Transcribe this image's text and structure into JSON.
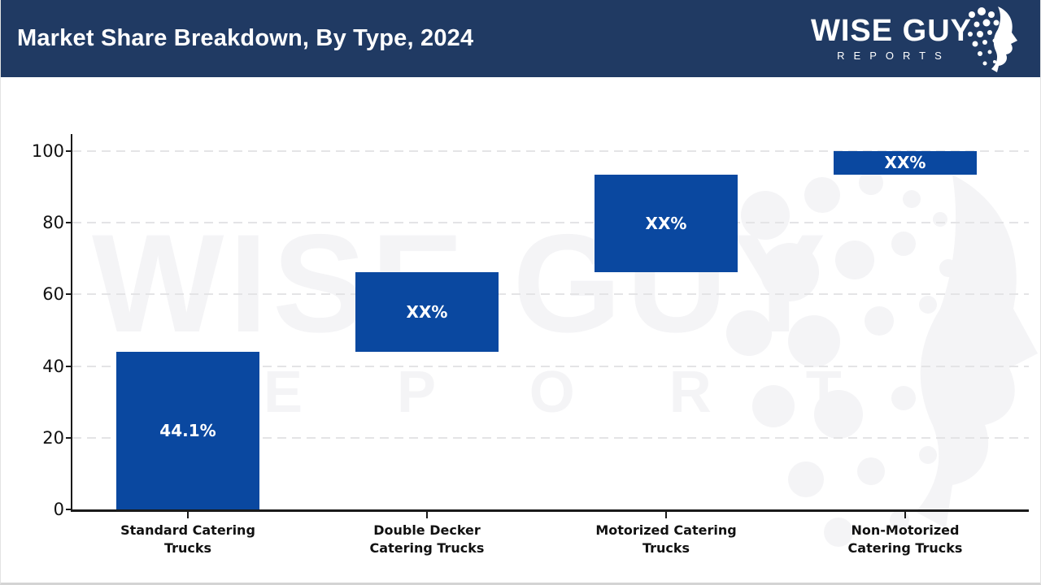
{
  "header": {
    "title": "Market Share Breakdown, By Type, 2024",
    "bg_color": "#203a63",
    "logo": {
      "line1": "WISE GUY",
      "line2": "REPORTS"
    }
  },
  "watermark": {
    "line1": "WISE GUY",
    "line2": "R E P O R T S"
  },
  "chart_data": {
    "type": "bar",
    "subtype": "floating-segment-breakdown",
    "title": "Market Share Breakdown, By Type, 2024",
    "unit": "%",
    "categories": [
      "Standard Catering Trucks",
      "Double Decker Catering Trucks",
      "Motorized Catering Trucks",
      "Non-Motorized Catering Trucks"
    ],
    "category_label_lines": [
      [
        "Standard Catering",
        "Trucks"
      ],
      [
        "Double Decker",
        "Catering Trucks"
      ],
      [
        "Motorized Catering",
        "Trucks"
      ],
      [
        "Non-Motorized",
        "Catering Trucks"
      ]
    ],
    "segments": [
      {
        "category": "Standard Catering Trucks",
        "start": 0,
        "end": 44.1,
        "label": "44.1%"
      },
      {
        "category": "Double Decker Catering Trucks",
        "start": 44.1,
        "end": 66.2,
        "label": "XX%"
      },
      {
        "category": "Motorized Catering Trucks",
        "start": 66.2,
        "end": 93.5,
        "label": "XX%"
      },
      {
        "category": "Non-Motorized Catering Trucks",
        "start": 93.5,
        "end": 100,
        "label": "XX%"
      }
    ],
    "yticks": [
      0,
      20,
      40,
      60,
      80,
      100
    ],
    "ylim": [
      0,
      105
    ],
    "grid": "horizontal-dashed",
    "legend": "none",
    "bar_color": "#0a48a0",
    "bar_label_color": "#ffffff",
    "axis_color": "#1a1a1a",
    "gridline_color": "#e4e4e6"
  }
}
